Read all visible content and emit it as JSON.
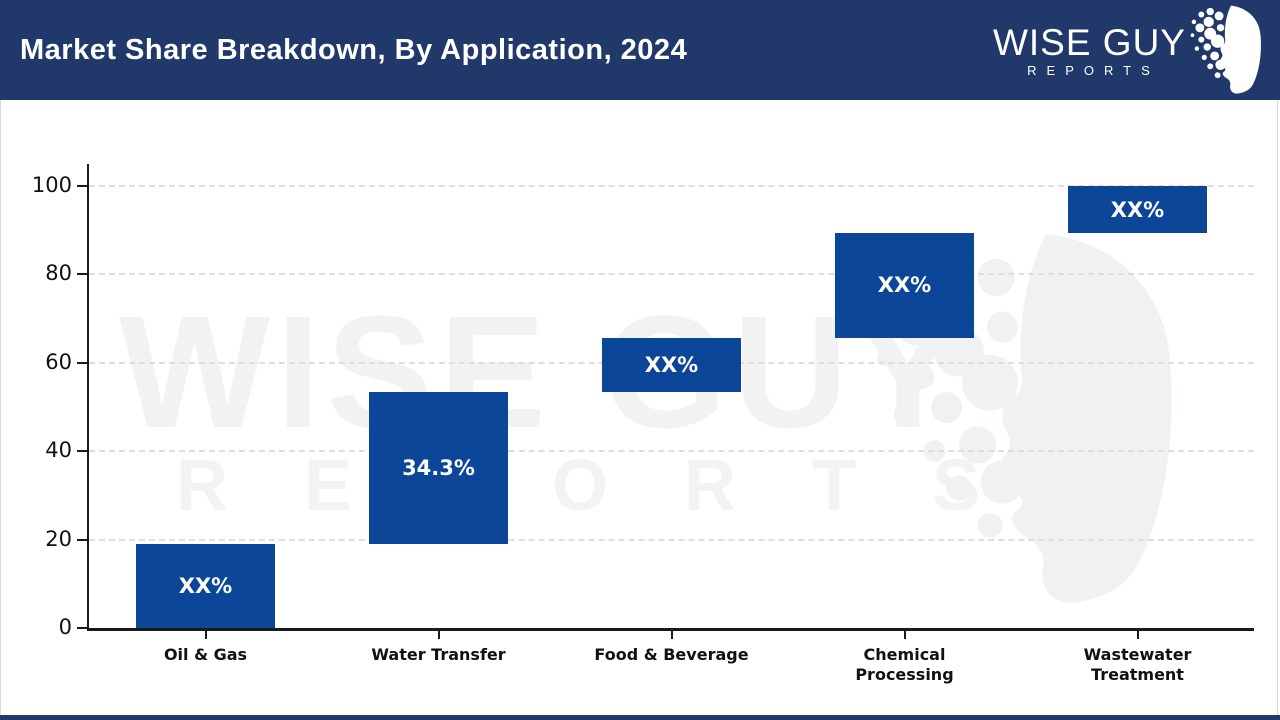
{
  "header": {
    "title": "Market Share Breakdown, By Application, 2024",
    "bg_color": "#20386a",
    "logo": {
      "line1": "WISE GUY",
      "line2": "REPORTS"
    }
  },
  "watermark": {
    "line1": "WISE GUY",
    "line2": "REPORTS"
  },
  "chart_data": {
    "type": "bar",
    "subtype": "floating-waterfall",
    "title": "Market Share Breakdown, By Application, 2024",
    "xlabel": "",
    "ylabel": "",
    "categories": [
      "Oil & Gas",
      "Water Transfer",
      "Food & Beverage",
      "Chemical Processing",
      "Wastewater Treatment"
    ],
    "series": [
      {
        "name": "Market share (%)",
        "segments": [
          {
            "category": "Oil & Gas",
            "start": 0,
            "end": 19.0,
            "value_label": "XX%"
          },
          {
            "category": "Water Transfer",
            "start": 19.0,
            "end": 53.3,
            "value_label": "34.3%"
          },
          {
            "category": "Food & Beverage",
            "start": 53.3,
            "end": 65.7,
            "value_label": "XX%"
          },
          {
            "category": "Chemical Processing",
            "start": 65.7,
            "end": 89.3,
            "value_label": "XX%"
          },
          {
            "category": "Wastewater Treatment",
            "start": 89.3,
            "end": 100.0,
            "value_label": "XX%"
          }
        ]
      }
    ],
    "ylim": [
      0,
      100
    ],
    "yticks": [
      0,
      20,
      40,
      60,
      80,
      100
    ],
    "grid": "horizontal-dashed",
    "legend": "none",
    "bar_color": "#0b4699",
    "bar_label_color": "#ffffff",
    "gridline_color": "#dedede"
  }
}
